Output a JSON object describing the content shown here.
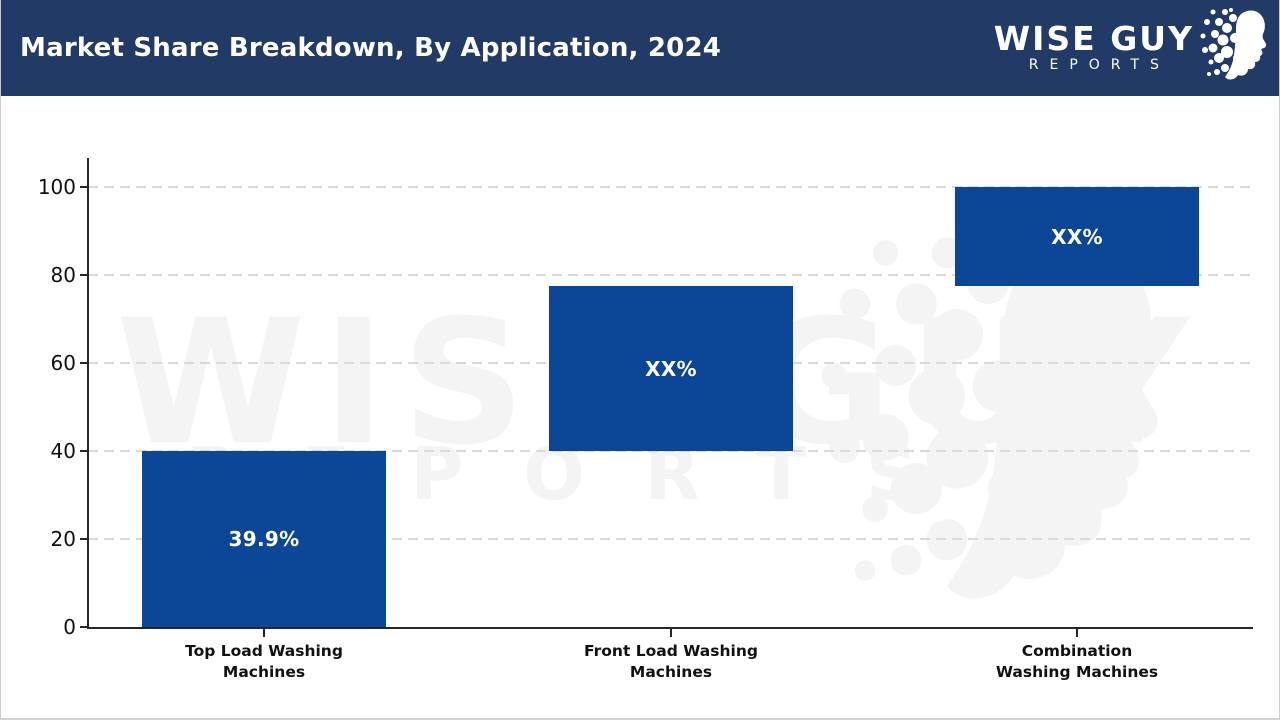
{
  "header": {
    "title": "Market Share Breakdown, By Application, 2024",
    "logo": {
      "line1": "WISE GUY",
      "line2": "REPORTS"
    }
  },
  "watermark": {
    "line1": "WISE GUY",
    "line2": "REPORTS"
  },
  "chart_data": {
    "type": "bar",
    "subtype": "stacked-waterfall",
    "title": "Market Share Breakdown, By Application, 2024",
    "categories": [
      {
        "lines": [
          "Top Load Washing",
          "Machines"
        ]
      },
      {
        "lines": [
          "Front Load Washing",
          "Machines"
        ]
      },
      {
        "lines": [
          "Combination",
          "Washing Machines"
        ]
      }
    ],
    "bars": [
      {
        "category": "Top Load Washing Machines",
        "start": 0,
        "end": 39.9,
        "label": "39.9%"
      },
      {
        "category": "Front Load Washing Machines",
        "start": 40,
        "end": 77.5,
        "label": "XX%"
      },
      {
        "category": "Combination Washing Machines",
        "start": 77.5,
        "end": 100,
        "label": "XX%"
      }
    ],
    "y_ticks": [
      0,
      20,
      40,
      60,
      80,
      100
    ],
    "ylim": [
      0,
      106
    ],
    "grid": "horizontal-dashed",
    "legend": "none",
    "xlabel": "",
    "ylabel": "",
    "colors": {
      "bar": "#0b4697",
      "bar_label": "#ffffff",
      "grid": "#d9d9d9",
      "axis": "#262626",
      "tick_label": "#111111",
      "header_bg": "#223a66",
      "header_text": "#ffffff",
      "watermark": "#f4f4f4"
    }
  }
}
